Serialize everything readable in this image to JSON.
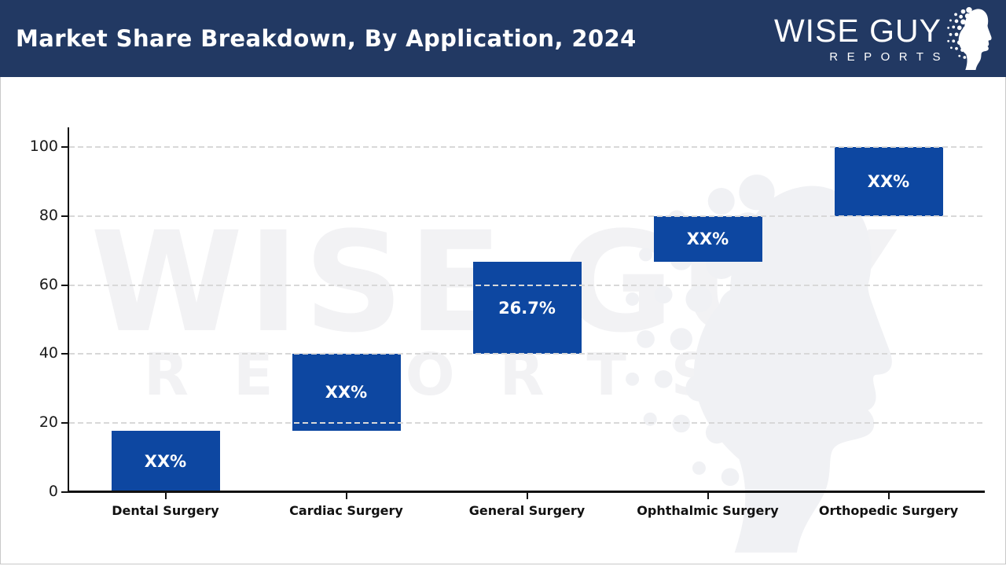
{
  "header": {
    "title": "Market Share Breakdown, By Application, 2024",
    "logo_line1": "WISE GUY",
    "logo_line2": "REPORTS",
    "bg_color": "#223963",
    "text_color": "#ffffff"
  },
  "watermark": {
    "line1": "WISE GUY",
    "line2": "REPORTS"
  },
  "chart_data": {
    "type": "bar",
    "subtype": "floating waterfall-style segments, one per category",
    "title": "Market Share Breakdown, By Application, 2024",
    "categories": [
      "Dental Surgery",
      "Cardiac Surgery",
      "General Surgery",
      "Ophthalmic Surgery",
      "Orthopedic Surgery"
    ],
    "series": [
      {
        "name": "Market share (%)",
        "segments": [
          {
            "category": "Dental Surgery",
            "start": 0,
            "end": 17.8,
            "value_label": "XX%"
          },
          {
            "category": "Cardiac Surgery",
            "start": 17.8,
            "end": 40,
            "value_label": "XX%"
          },
          {
            "category": "General Surgery",
            "start": 40,
            "end": 66.7,
            "value_label": "26.7%"
          },
          {
            "category": "Ophthalmic Surgery",
            "start": 66.7,
            "end": 80,
            "value_label": "XX%"
          },
          {
            "category": "Orthopedic Surgery",
            "start": 80,
            "end": 100,
            "value_label": "XX%"
          }
        ]
      }
    ],
    "xlabel": "",
    "ylabel": "",
    "ylim": [
      0,
      100
    ],
    "yticks": [
      0,
      20,
      40,
      60,
      80,
      100
    ],
    "grid": "horizontal dashed lines drawn above bars",
    "legend": "none",
    "colors": {
      "bar": "#0d47a1",
      "bar_label": "#ffffff",
      "axis": "#111111",
      "grid": "#d8d8d8",
      "tick_label": "#1a1a1a",
      "watermark": "#f2f2f4"
    }
  }
}
